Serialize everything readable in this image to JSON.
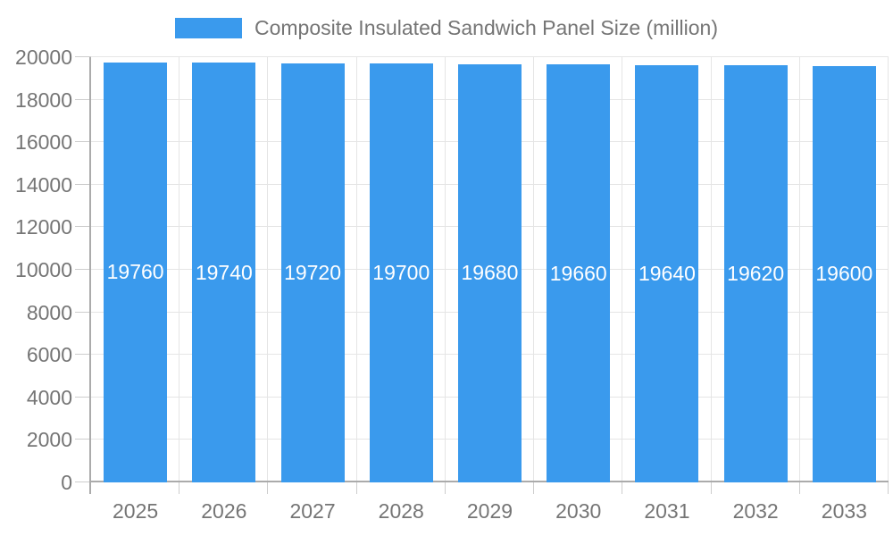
{
  "chart_data": {
    "type": "bar",
    "title": "Composite Insulated Sandwich Panel Size (million)",
    "categories": [
      "2025",
      "2026",
      "2027",
      "2028",
      "2029",
      "2030",
      "2031",
      "2032",
      "2033"
    ],
    "values": [
      19760,
      19740,
      19720,
      19700,
      19680,
      19660,
      19640,
      19620,
      19600
    ],
    "xlabel": "",
    "ylabel": "",
    "ylim": [
      0,
      20000
    ],
    "y_tick_step": 2000,
    "y_tick_labels": [
      "0",
      "2000",
      "4000",
      "6000",
      "8000",
      "10000",
      "12000",
      "14000",
      "16000",
      "18000",
      "20000"
    ],
    "grid": true,
    "legend_position": "top",
    "colors": {
      "bar": "#3A9AED",
      "text": "#757575",
      "grid_line": "#E5E5E5",
      "axis_line": "#ABABAB",
      "tick_line": "#CDCDCD",
      "value_label": "#FFFFFF",
      "background": "#FFFFFF"
    }
  }
}
